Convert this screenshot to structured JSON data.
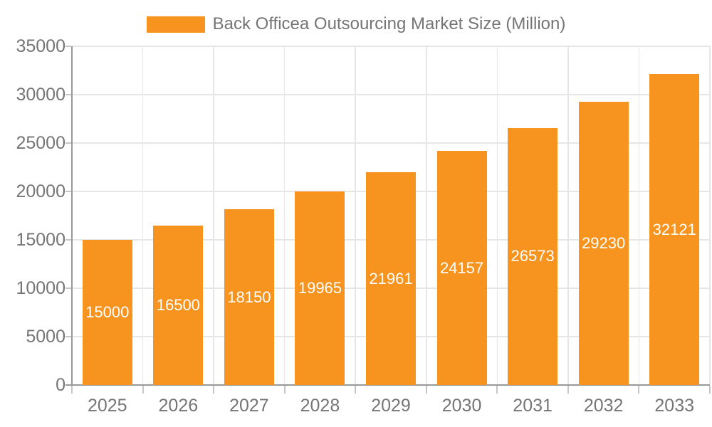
{
  "legend": {
    "label": "Back Officea Outsourcing Market Size (Million)"
  },
  "chart_data": {
    "type": "bar",
    "title": "Back Officea Outsourcing Market Size (Million)",
    "series_name": "Back Officea Outsourcing Market Size (Million)",
    "categories": [
      "2025",
      "2026",
      "2027",
      "2028",
      "2029",
      "2030",
      "2031",
      "2032",
      "2033"
    ],
    "values": [
      15000,
      16500,
      18150,
      19965,
      21961,
      24157,
      26573,
      29230,
      32121
    ],
    "data_labels": [
      "15000",
      "16500",
      "18150",
      "19965",
      "21961",
      "24157",
      "26573",
      "29230",
      "32121"
    ],
    "xlabel": "",
    "ylabel": "",
    "ylim": [
      0,
      35000
    ],
    "yticks": [
      0,
      5000,
      10000,
      15000,
      20000,
      25000,
      30000,
      35000
    ],
    "ytick_labels": [
      "0",
      "5000",
      "10000",
      "15000",
      "20000",
      "25000",
      "30000",
      "35000"
    ],
    "grid": true,
    "legend_position": "top"
  },
  "colors": {
    "bar": "#f7941f",
    "bar_label": "#ffffff",
    "grid_line": "#e6e6e6",
    "axis_line": "#999999",
    "tick_line": "#c6c6c6",
    "tick_label": "#757575",
    "legend_text": "#757575",
    "background": "#ffffff"
  }
}
